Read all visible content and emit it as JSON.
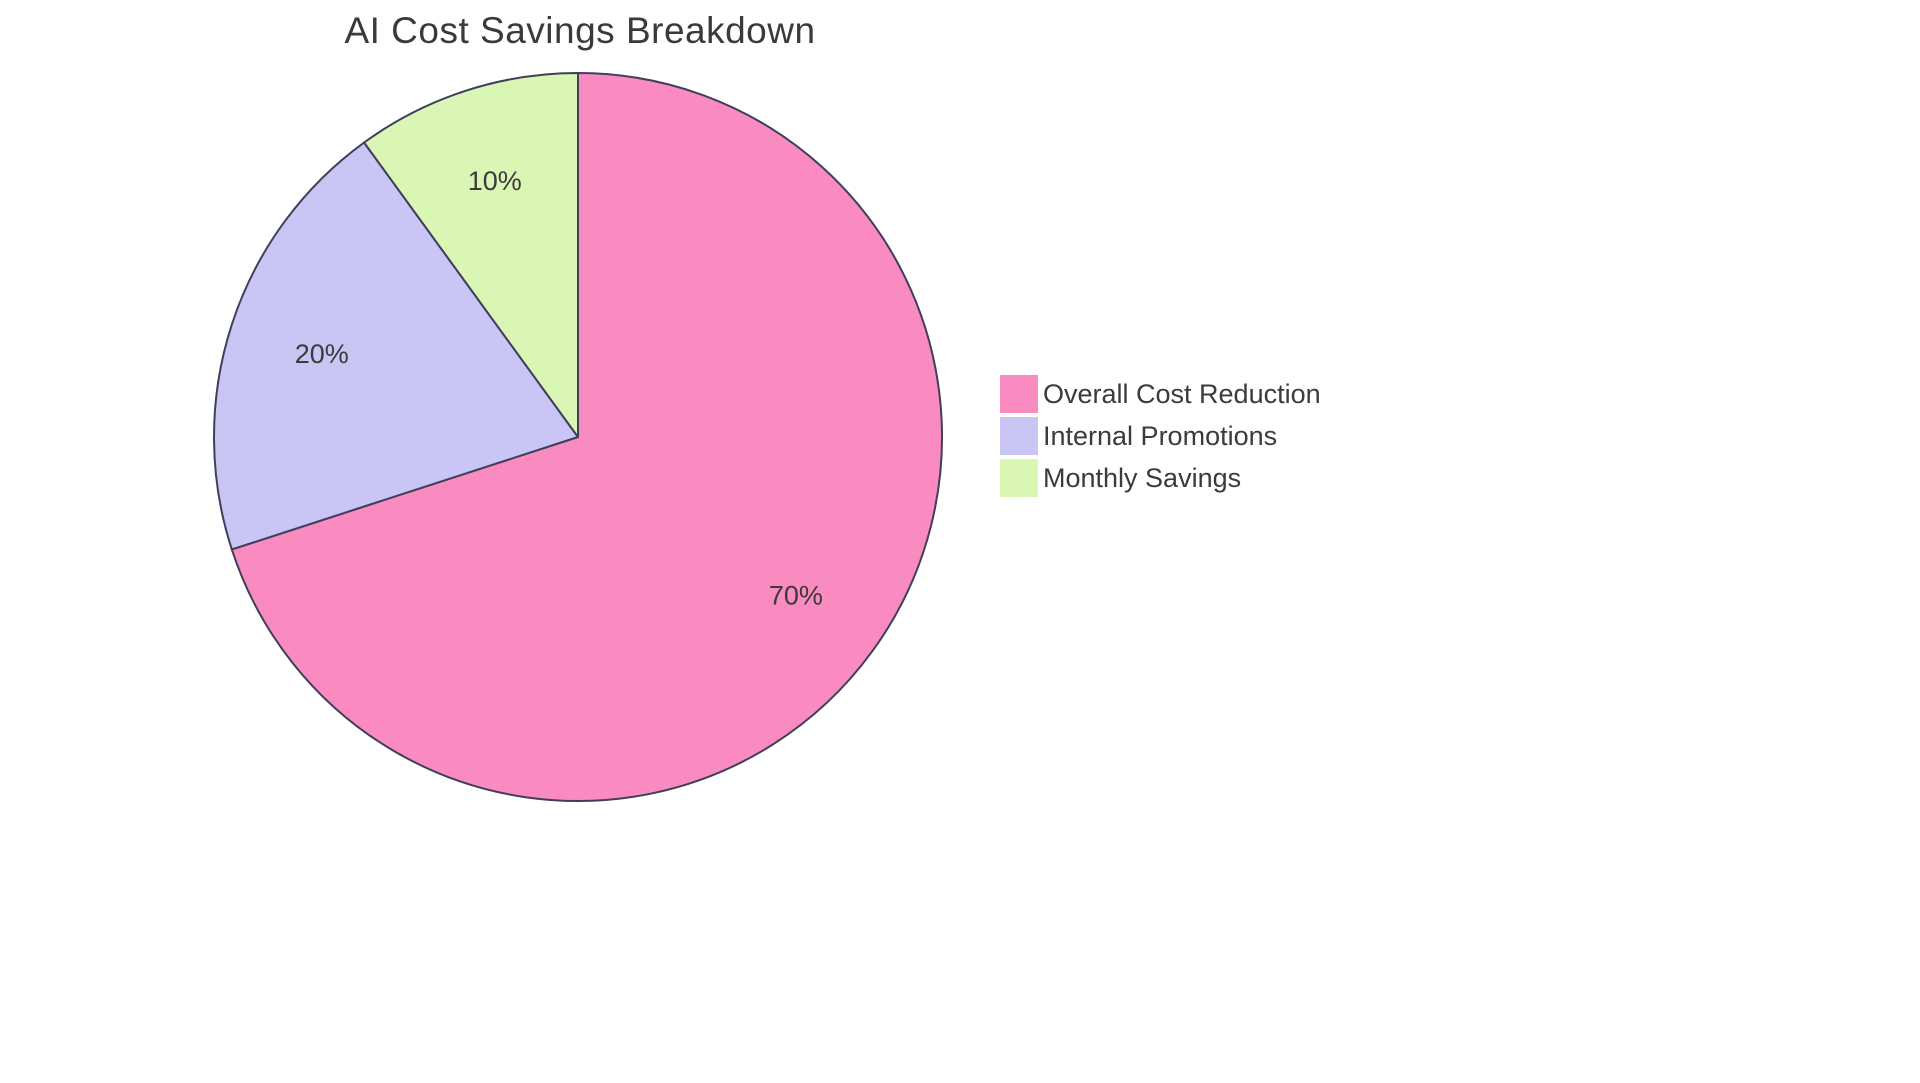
{
  "chart_data": {
    "type": "pie",
    "title": "AI Cost Savings Breakdown",
    "slices": [
      {
        "label": "Overall Cost Reduction",
        "value": 70,
        "display": "70%",
        "color": "#F98BC1"
      },
      {
        "label": "Internal Promotions",
        "value": 20,
        "display": "20%",
        "color": "#C9C5F4"
      },
      {
        "label": "Monthly Savings",
        "value": 10,
        "display": "10%",
        "color": "#D9F6B4"
      }
    ],
    "start_angle_deg": 0,
    "direction": "clockwise",
    "legend_position": "right",
    "stroke_color": "#3F3F5C",
    "label_color": "#3B3B3B",
    "background": "#FFFFFF"
  }
}
